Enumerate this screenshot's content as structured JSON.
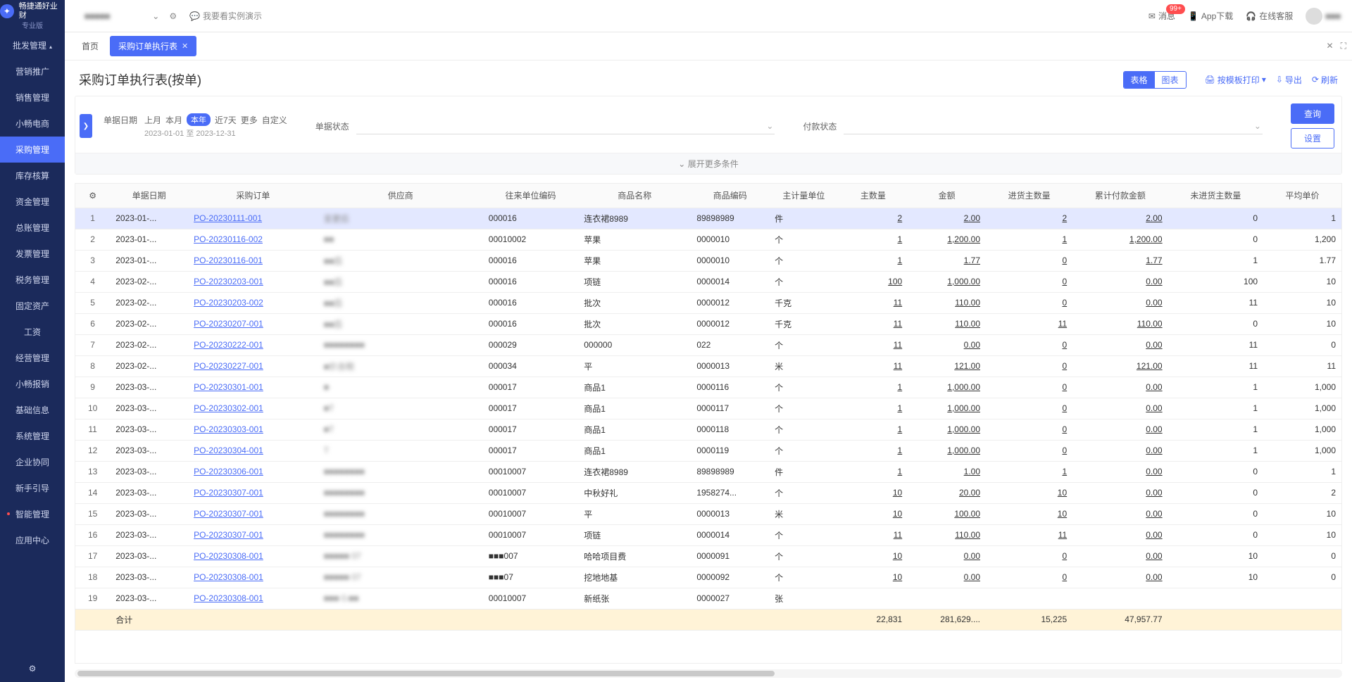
{
  "brand": {
    "product": "畅捷通好业财",
    "edition": "专业版",
    "org_masked": "■■■■■"
  },
  "topbar": {
    "demo": "我要看实例演示",
    "msg": "消息",
    "msg_badge": "99+",
    "app": "App下载",
    "cs": "在线客服",
    "user_masked": "■■■"
  },
  "sidebar": {
    "items": [
      "批发管理",
      "营销推广",
      "销售管理",
      "小畅电商",
      "采购管理",
      "库存核算",
      "资金管理",
      "总账管理",
      "发票管理",
      "税务管理",
      "固定资产",
      "工资",
      "经营管理",
      "小畅报销",
      "基础信息",
      "系统管理",
      "企业协同",
      "新手引导",
      "智能管理",
      "应用中心"
    ],
    "active_index": 4,
    "expand_index": 0,
    "dot_index": 18
  },
  "tabs": {
    "home": "首页",
    "active": "采购订单执行表"
  },
  "page": {
    "title": "采购订单执行表(按单)"
  },
  "toolbar": {
    "seg_table": "表格",
    "seg_chart": "图表",
    "print": "按模板打印",
    "export": "导出",
    "refresh": "刷新"
  },
  "filter": {
    "date_label": "单据日期",
    "ranges": [
      "上月",
      "本月",
      "本年",
      "近7天",
      "更多",
      "自定义"
    ],
    "range_sel": 2,
    "date_text": "2023-01-01 至 2023-12-31",
    "status_label": "单据状态",
    "pay_label": "付款状态",
    "query": "查询",
    "setting": "设置",
    "expand": "展开更多条件"
  },
  "table": {
    "columns": [
      "",
      "单据日期",
      "采购订单",
      "供应商",
      "往来单位编码",
      "商品名称",
      "商品编码",
      "主计量单位",
      "主数量",
      "金额",
      "进货主数量",
      "累计付款金额",
      "未进货主数量",
      "平均单价"
    ],
    "rows": [
      {
        "d": "2023-01-...",
        "po": "PO-20230111-001",
        "sup": "变更后",
        "supcode": "000016",
        "pn": "连衣裙8989",
        "pc": "89898989",
        "u": "件",
        "qty": "2",
        "amt": "2.00",
        "inq": "2",
        "pay": "2.00",
        "unq": "0",
        "avg": "1"
      },
      {
        "d": "2023-01-...",
        "po": "PO-20230116-002",
        "sup": "■■",
        "supcode": "00010002",
        "pn": "苹果",
        "pc": "0000010",
        "u": "个",
        "qty": "1",
        "amt": "1,200.00",
        "inq": "1",
        "pay": "1,200.00",
        "unq": "0",
        "avg": "1,200"
      },
      {
        "d": "2023-01-...",
        "po": "PO-20230116-001",
        "sup": "■■后",
        "supcode": "000016",
        "pn": "苹果",
        "pc": "0000010",
        "u": "个",
        "qty": "1",
        "amt": "1.77",
        "inq": "0",
        "pay": "1.77",
        "unq": "1",
        "avg": "1.77"
      },
      {
        "d": "2023-02-...",
        "po": "PO-20230203-001",
        "sup": "■■后",
        "supcode": "000016",
        "pn": "项链",
        "pc": "0000014",
        "u": "个",
        "qty": "100",
        "amt": "1,000.00",
        "inq": "0",
        "pay": "0.00",
        "unq": "100",
        "avg": "10"
      },
      {
        "d": "2023-02-...",
        "po": "PO-20230203-002",
        "sup": "■■后",
        "supcode": "000016",
        "pn": "批次",
        "pc": "0000012",
        "u": "千克",
        "qty": "11",
        "amt": "110.00",
        "inq": "0",
        "pay": "0.00",
        "unq": "11",
        "avg": "10"
      },
      {
        "d": "2023-02-...",
        "po": "PO-20230207-001",
        "sup": "■■后",
        "supcode": "000016",
        "pn": "批次",
        "pc": "0000012",
        "u": "千克",
        "qty": "11",
        "amt": "110.00",
        "inq": "11",
        "pay": "110.00",
        "unq": "0",
        "avg": "10"
      },
      {
        "d": "2023-02-...",
        "po": "PO-20230222-001",
        "sup": "■■■■■■■■",
        "supcode": "000029",
        "pn": "000000",
        "pc": "022",
        "u": "个",
        "qty": "11",
        "amt": "0.00",
        "inq": "0",
        "pay": "0.00",
        "unq": "11",
        "avg": "0"
      },
      {
        "d": "2023-02-...",
        "po": "PO-20230227-001",
        "sup": "■价含税",
        "supcode": "000034",
        "pn": "平",
        "pc": "0000013",
        "u": "米",
        "qty": "11",
        "amt": "121.00",
        "inq": "0",
        "pay": "121.00",
        "unq": "11",
        "avg": "11"
      },
      {
        "d": "2023-03-...",
        "po": "PO-20230301-001",
        "sup": "■",
        "supcode": "000017",
        "pn": "商品1",
        "pc": "0000116",
        "u": "个",
        "qty": "1",
        "amt": "1,000.00",
        "inq": "0",
        "pay": "0.00",
        "unq": "1",
        "avg": "1,000"
      },
      {
        "d": "2023-03-...",
        "po": "PO-20230302-001",
        "sup": "■T",
        "supcode": "000017",
        "pn": "商品1",
        "pc": "0000117",
        "u": "个",
        "qty": "1",
        "amt": "1,000.00",
        "inq": "0",
        "pay": "0.00",
        "unq": "1",
        "avg": "1,000"
      },
      {
        "d": "2023-03-...",
        "po": "PO-20230303-001",
        "sup": "■T",
        "supcode": "000017",
        "pn": "商品1",
        "pc": "0000118",
        "u": "个",
        "qty": "1",
        "amt": "1,000.00",
        "inq": "0",
        "pay": "0.00",
        "unq": "1",
        "avg": "1,000"
      },
      {
        "d": "2023-03-...",
        "po": "PO-20230304-001",
        "sup": "T",
        "supcode": "000017",
        "pn": "商品1",
        "pc": "0000119",
        "u": "个",
        "qty": "1",
        "amt": "1,000.00",
        "inq": "0",
        "pay": "0.00",
        "unq": "1",
        "avg": "1,000"
      },
      {
        "d": "2023-03-...",
        "po": "PO-20230306-001",
        "sup": "■■■■■■■■",
        "supcode": "00010007",
        "pn": "连衣裙8989",
        "pc": "89898989",
        "u": "件",
        "qty": "1",
        "amt": "1.00",
        "inq": "1",
        "pay": "0.00",
        "unq": "0",
        "avg": "1"
      },
      {
        "d": "2023-03-...",
        "po": "PO-20230307-001",
        "sup": "■■■■■■■■",
        "supcode": "00010007",
        "pn": "中秋好礼",
        "pc": "1958274...",
        "u": "个",
        "qty": "10",
        "amt": "20.00",
        "inq": "10",
        "pay": "0.00",
        "unq": "0",
        "avg": "2"
      },
      {
        "d": "2023-03-...",
        "po": "PO-20230307-001",
        "sup": "■■■■■■■■",
        "supcode": "00010007",
        "pn": "平",
        "pc": "0000013",
        "u": "米",
        "qty": "10",
        "amt": "100.00",
        "inq": "10",
        "pay": "0.00",
        "unq": "0",
        "avg": "10"
      },
      {
        "d": "2023-03-...",
        "po": "PO-20230307-001",
        "sup": "■■■■■■■■",
        "supcode": "00010007",
        "pn": "项链",
        "pc": "0000014",
        "u": "个",
        "qty": "11",
        "amt": "110.00",
        "inq": "11",
        "pay": "0.00",
        "unq": "0",
        "avg": "10"
      },
      {
        "d": "2023-03-...",
        "po": "PO-20230308-001",
        "sup": "■■■■■ 07",
        "supcode": "■■■007",
        "pn": "哈哈项目费",
        "pc": "0000091",
        "u": "个",
        "qty": "10",
        "amt": "0.00",
        "inq": "0",
        "pay": "0.00",
        "unq": "10",
        "avg": "0"
      },
      {
        "d": "2023-03-...",
        "po": "PO-20230308-001",
        "sup": "■■■■■ 07",
        "supcode": "■■■07",
        "pn": "挖地地基",
        "pc": "0000092",
        "u": "个",
        "qty": "10",
        "amt": "0.00",
        "inq": "0",
        "pay": "0.00",
        "unq": "10",
        "avg": "0"
      },
      {
        "d": "2023-03-...",
        "po": "PO-20230308-001",
        "sup": "■■■ 0.■■",
        "supcode": "00010007",
        "pn": "新纸张",
        "pc": "0000027",
        "u": "张",
        "qty": "",
        "amt": "",
        "inq": "",
        "pay": "",
        "unq": "",
        "avg": ""
      }
    ],
    "totals": {
      "label": "合计",
      "qty": "22,831",
      "amt": "281,629....",
      "inq": "15,225",
      "pay": "47,957.77"
    }
  }
}
